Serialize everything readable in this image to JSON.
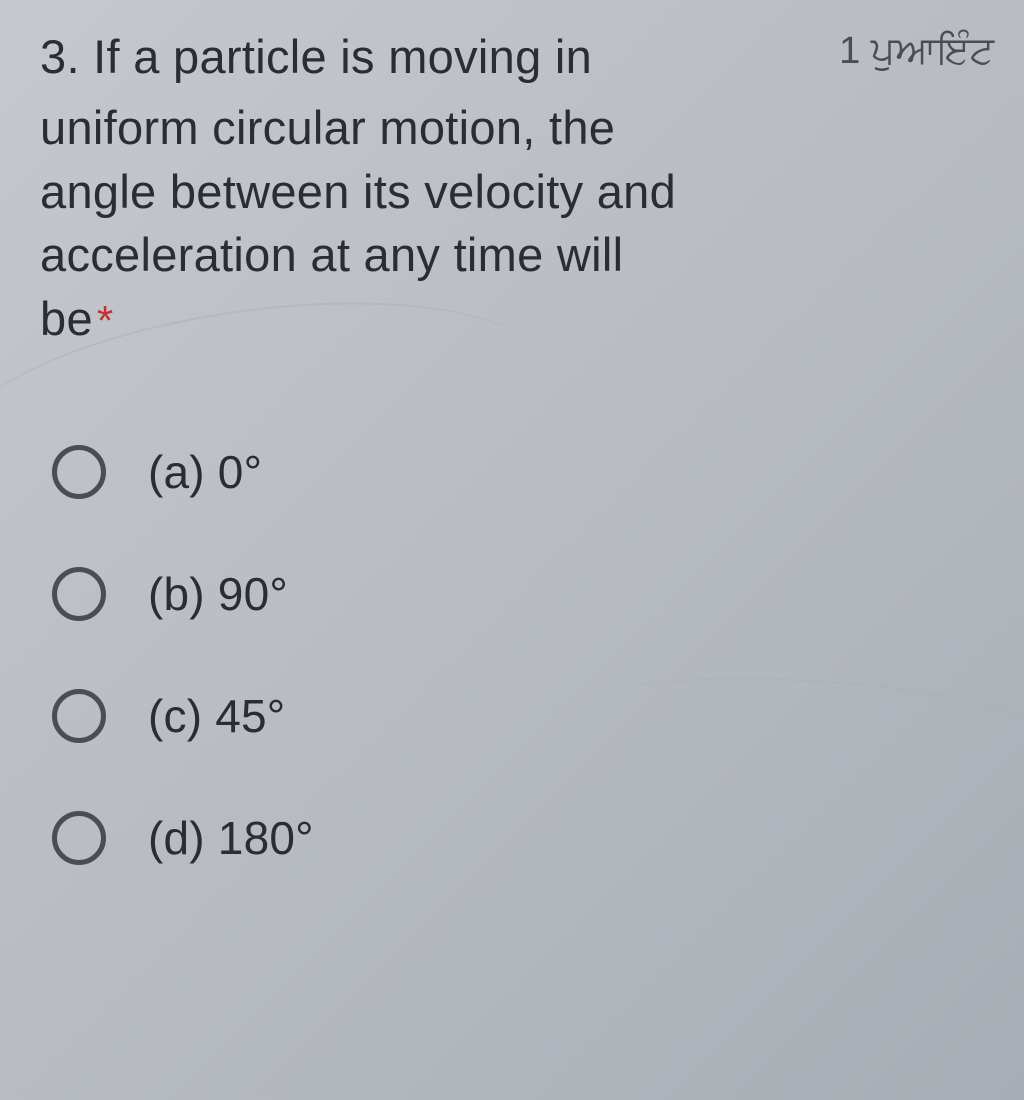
{
  "question": {
    "number": "3.",
    "line1": "If a particle is moving in",
    "line2": "uniform circular motion, the",
    "line3": "angle between its velocity and",
    "line4": "acceleration at any time will",
    "line5": "be",
    "required_marker": "*"
  },
  "points_label": "1 ਪੁਆਇੰਟ",
  "options": [
    {
      "label": "(a) 0°"
    },
    {
      "label": "(b) 90°"
    },
    {
      "label": "(c) 45°"
    },
    {
      "label": "(d) 180°"
    }
  ],
  "styling": {
    "background_gradient_start": "#c5c8cc",
    "background_gradient_end": "#a8adb5",
    "text_color": "#2a2d33",
    "points_color": "#4a4d52",
    "star_color": "#c83030",
    "radio_border_color": "#4a4d54",
    "question_fontsize": 47,
    "option_fontsize": 46,
    "points_fontsize": 38,
    "radio_diameter": 54,
    "radio_border_width": 5,
    "option_spacing": 68
  }
}
